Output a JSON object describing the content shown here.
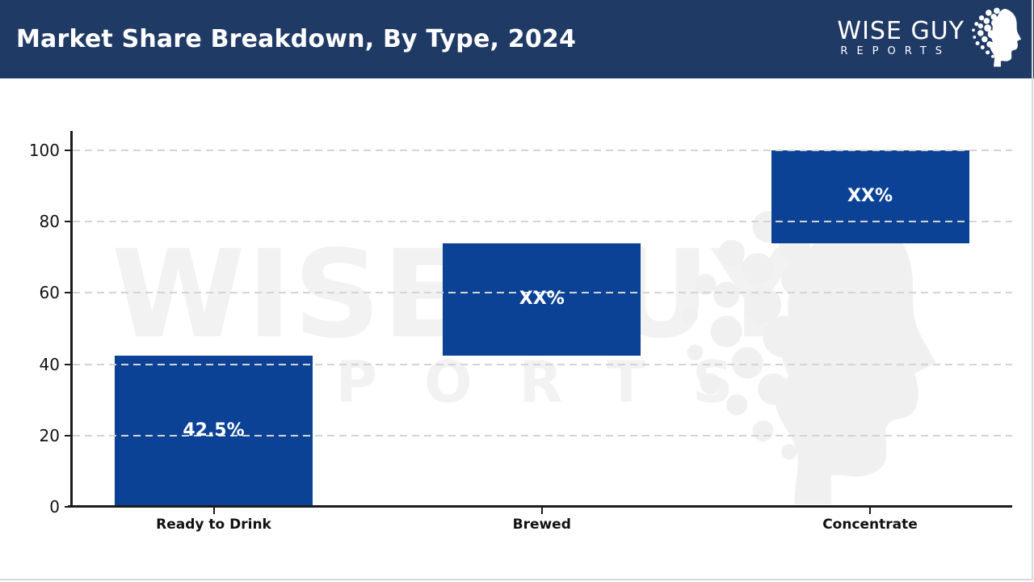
{
  "header": {
    "title": "Market Share Breakdown, By Type, 2024",
    "bg_color": "#203a66",
    "logo": {
      "line1": "WISE GUY",
      "line2": "REPORTS"
    }
  },
  "watermark": {
    "line1": "WISE GUY",
    "line2": "REPORTS"
  },
  "chart_data": {
    "type": "bar",
    "variant": "waterfall",
    "title": "Market Share Breakdown, By Type, 2024",
    "categories": [
      "Ready to Drink",
      "Brewed",
      "Concentrate"
    ],
    "segments": [
      {
        "category": "Ready to Drink",
        "start": 0,
        "end": 42.5,
        "label": "42.5%"
      },
      {
        "category": "Brewed",
        "start": 42.5,
        "end": 74,
        "label": "XX%"
      },
      {
        "category": "Concentrate",
        "start": 74,
        "end": 100,
        "label": "XX%"
      }
    ],
    "yticks": [
      0,
      20,
      40,
      60,
      80,
      100
    ],
    "ylim": [
      0,
      105
    ],
    "xlabel": "",
    "ylabel": "",
    "grid": "horizontal dashed",
    "legend": "none",
    "colors": {
      "bar": "#0b4296",
      "bar_label": "#ffffff",
      "grid": "#d4d4d4",
      "axis": "#1c1c1c",
      "header": "#203a66",
      "watermark": "#f2f2f2"
    }
  }
}
